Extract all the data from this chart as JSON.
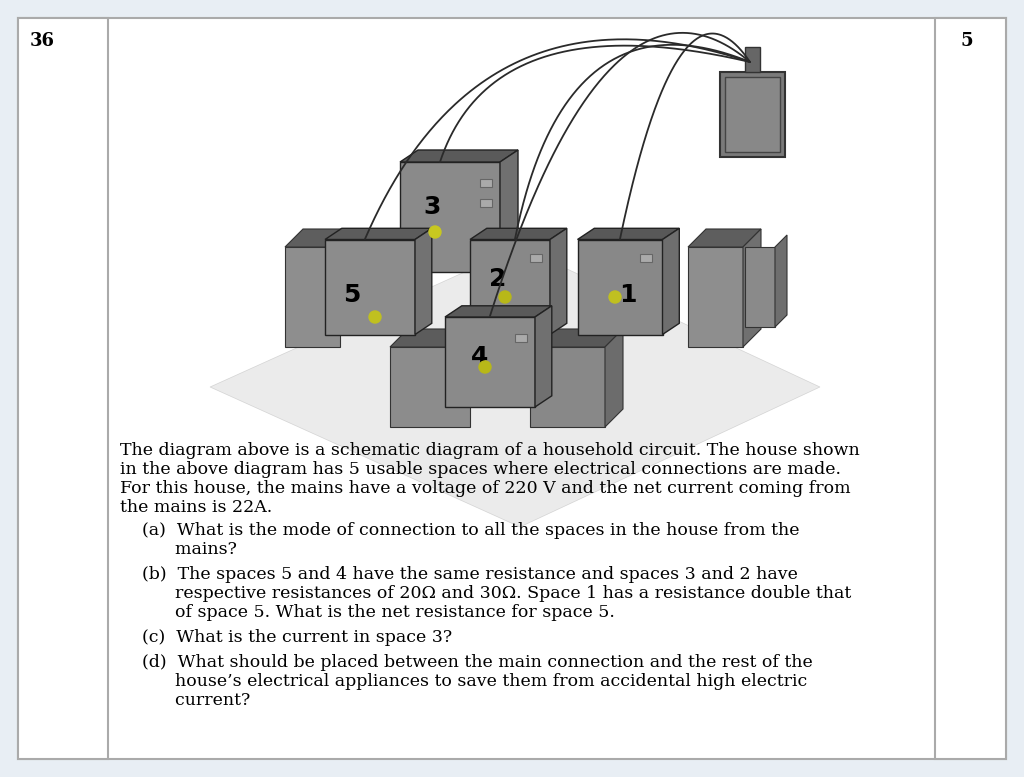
{
  "bg_color": "#e8eef4",
  "page_bg": "#ffffff",
  "border_color": "#aaaaaa",
  "question_number": "36",
  "marks": "5",
  "body_line1": "The diagram above is a schematic diagram of a household circuit. The house shown",
  "body_line2": "in the above diagram has 5 usable spaces where electrical connections are made.",
  "body_line3": "For this house, the mains have a voltage of 220 V and the net current coming from",
  "body_line4": "the mains is 22A.",
  "q_a_line1": "    (a)  What is the mode of connection to all the spaces in the house from the",
  "q_a_line2": "          mains?",
  "q_b_line1": "    (b)  The spaces 5 and 4 have the same resistance and spaces 3 and 2 have",
  "q_b_line2": "          respective resistances of 20Ω and 30Ω. Space 1 has a resistance double that",
  "q_b_line3": "          of space 5. What is the net resistance for space 5.",
  "q_c_line1": "    (c)  What is the current in space 3?",
  "q_d_line1": "    (d)  What should be placed between the main connection and the rest of the",
  "q_d_line2": "          house’s electrical appliances to save them from accidental high electric",
  "q_d_line3": "          current?",
  "font_size": 12.5,
  "font_family": "DejaVu Serif",
  "wall_light": "#909090",
  "wall_mid": "#787878",
  "wall_dark": "#606060",
  "wall_darker": "#505050",
  "mains_box": "#808080",
  "wire_color": "#2a2a2a"
}
